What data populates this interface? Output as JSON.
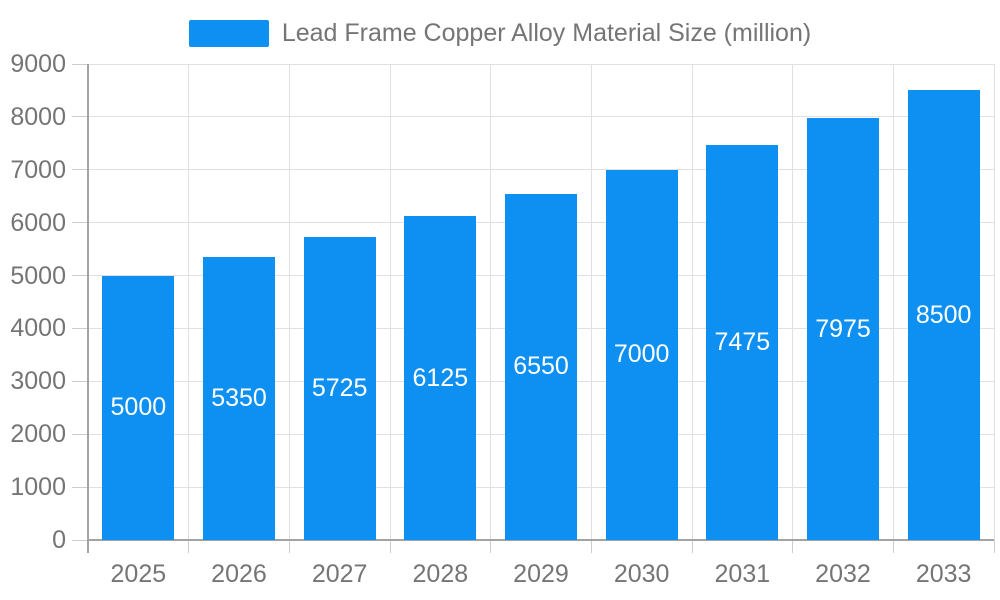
{
  "colors": {
    "bar": "#0E90F2",
    "grid": "#E0E0E0",
    "tick_line": "#CCCCCC",
    "axis_line": "#A3A3A3",
    "axis_text": "#757575",
    "bar_label_text": "#FFFFFF",
    "background": "#FFFFFF"
  },
  "chart_data": {
    "type": "bar",
    "title": "Lead Frame Copper Alloy Material Size (million)",
    "categories": [
      "2025",
      "2026",
      "2027",
      "2028",
      "2029",
      "2030",
      "2031",
      "2032",
      "2033"
    ],
    "values": [
      5000,
      5350,
      5725,
      6125,
      6550,
      7000,
      7475,
      7975,
      8500
    ],
    "bar_value_labels": [
      "5000",
      "5350",
      "5725",
      "6125",
      "6550",
      "7000",
      "7475",
      "7975",
      "8500"
    ],
    "xlabel": "",
    "ylabel": "",
    "ylim": [
      0,
      9000
    ],
    "ytick_step": 1000,
    "ytick_labels": [
      "0",
      "1000",
      "2000",
      "3000",
      "4000",
      "5000",
      "6000",
      "7000",
      "8000",
      "9000"
    ],
    "grid": true,
    "legend_position": "top"
  }
}
